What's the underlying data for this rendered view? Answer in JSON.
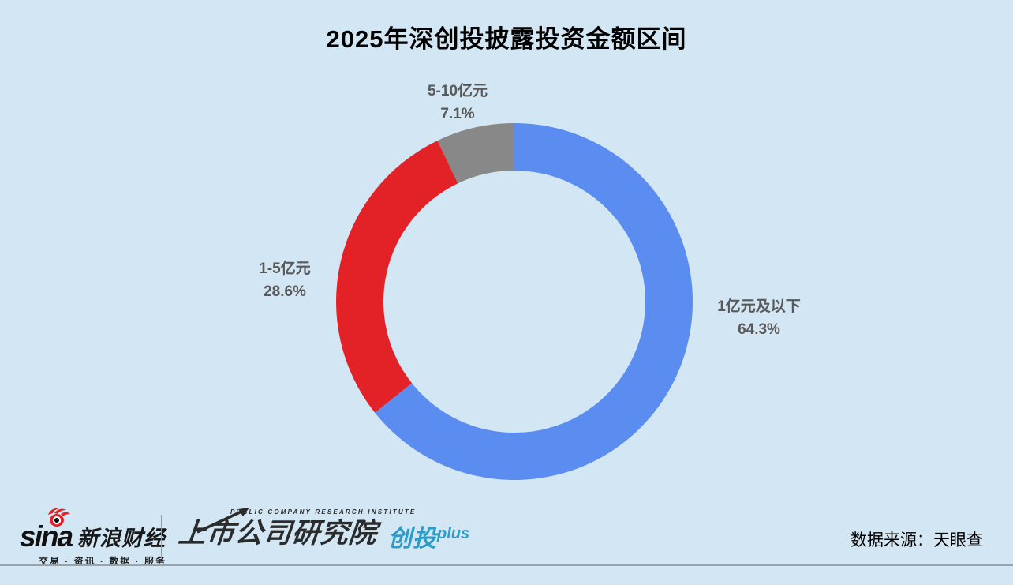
{
  "page": {
    "background": "#d2e6f4",
    "title": "2025年深创投披露投资金额区间"
  },
  "chart_data": {
    "type": "pie",
    "title": "2025年深创投披露投资金额区间",
    "donut": true,
    "start_angle_deg": 0,
    "direction": "clockwise",
    "inner_radius_ratio": 0.7345,
    "label_color": "#595959",
    "legend_position": "labels-outside",
    "slices": [
      {
        "label": "1亿元及以下",
        "value": 64.3,
        "pct_label": "64.3%",
        "color": "#5b8df0"
      },
      {
        "label": "1-5亿元",
        "value": 28.6,
        "pct_label": "28.6%",
        "color": "#e32228"
      },
      {
        "label": "5-10亿元",
        "value": 7.1,
        "pct_label": "7.1%",
        "color": "#888888"
      }
    ]
  },
  "footer": {
    "sina": {
      "logo_text": "sina",
      "brand": "新浪财经",
      "tagline": "交易 · 资讯 · 数据 · 服务"
    },
    "pcri": {
      "en": "PUBLIC COMPANY RESEARCH INSTITUTE",
      "cn": "上市公司研究院",
      "sub_brand": "创投",
      "sub_brand_suffix": "plus",
      "accent_color": "#2d9cc9"
    },
    "source": "数据来源：天眼查"
  }
}
